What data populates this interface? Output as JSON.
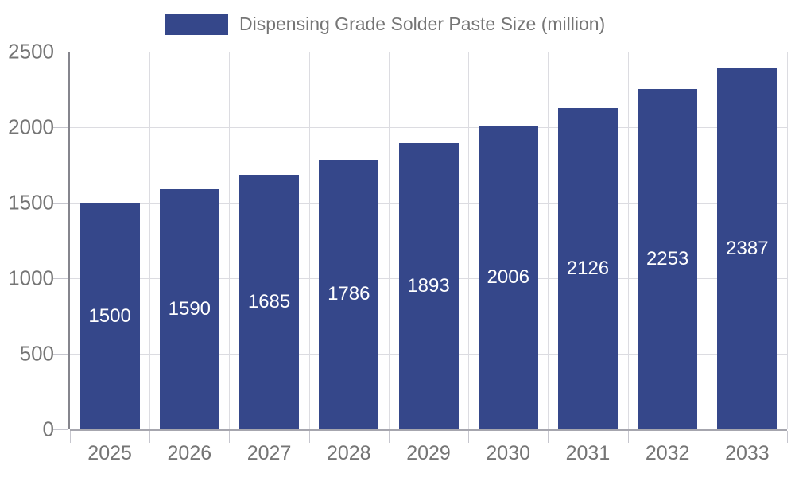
{
  "legend": {
    "label": "Dispensing Grade Solder Paste Size (million)",
    "swatch_color": "#35478a"
  },
  "chart_data": {
    "type": "bar",
    "title": "Dispensing Grade Solder Paste Size (million)",
    "categories": [
      "2025",
      "2026",
      "2027",
      "2028",
      "2029",
      "2030",
      "2031",
      "2032",
      "2033"
    ],
    "values": [
      1500,
      1590,
      1685,
      1786,
      1893,
      2006,
      2126,
      2253,
      2387
    ],
    "xlabel": "",
    "ylabel": "",
    "ylim": [
      0,
      2500
    ],
    "yticks": [
      0,
      500,
      1000,
      1500,
      2000,
      2500
    ],
    "bar_color": "#35478a",
    "value_label_color": "#ffffff",
    "axis_label_color": "#757575",
    "grid": true,
    "legend_position": "top"
  }
}
